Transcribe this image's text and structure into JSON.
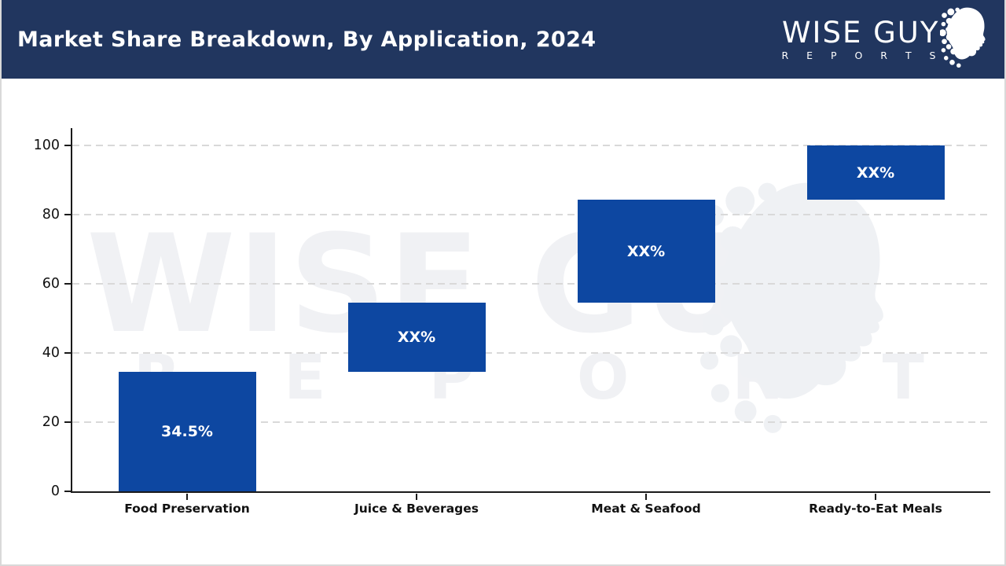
{
  "header": {
    "title": "Market Share Breakdown, By Application, 2024",
    "bg_color": "#21365f",
    "logo": {
      "line1": "WISE GUY",
      "line2": "R E P O R T S",
      "head_icon": "dotted-head-profile"
    }
  },
  "watermark": {
    "line1": "WISE GUY",
    "line2": "R E P O R T S",
    "head_icon": "dotted-head-profile",
    "color": "#f0f1f4"
  },
  "chart_data": {
    "type": "bar",
    "subtype": "waterfall",
    "title": "Market Share Breakdown, By Application, 2024",
    "categories": [
      "Food Preservation",
      "Juice & Beverages",
      "Meat & Seafood",
      "Ready-to-Eat Meals"
    ],
    "segments": [
      {
        "category": "Food Preservation",
        "start": 0,
        "end": 34.5,
        "label": "34.5%"
      },
      {
        "category": "Juice & Beverages",
        "start": 34.5,
        "end": 54.5,
        "label": "XX%"
      },
      {
        "category": "Meat & Seafood",
        "start": 54.5,
        "end": 84.3,
        "label": "XX%"
      },
      {
        "category": "Ready-to-Eat Meals",
        "start": 84.3,
        "end": 100,
        "label": "XX%"
      }
    ],
    "xlabel": "",
    "ylabel": "",
    "yticks": [
      0,
      20,
      40,
      60,
      80,
      100
    ],
    "ylim": [
      0,
      105
    ],
    "grid": {
      "horizontal": true,
      "style": "dashed",
      "color": "#d9d9d9"
    },
    "legend": "none",
    "bar_color": "#0d47a1",
    "bar_label_color": "#ffffff",
    "axis_color": "#1a1a1a"
  }
}
